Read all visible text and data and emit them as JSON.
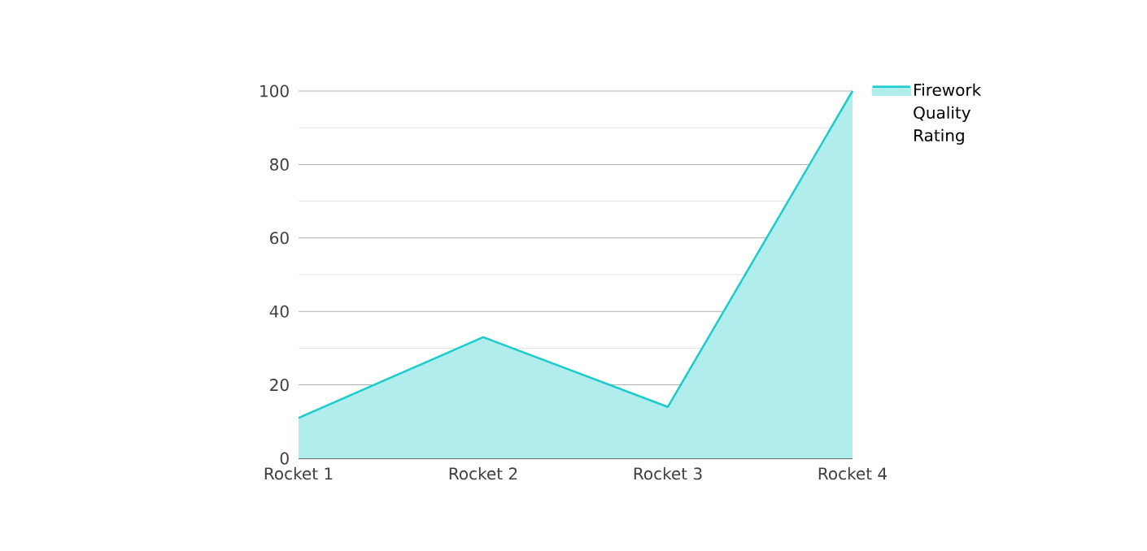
{
  "chart_data": {
    "type": "area",
    "categories": [
      "Rocket 1",
      "Rocket 2",
      "Rocket 3",
      "Rocket 4"
    ],
    "series": [
      {
        "name": "Firework Quality Rating",
        "color": "#1ccbcc",
        "values": [
          11,
          33,
          14,
          100
        ]
      }
    ],
    "ylim": [
      0,
      100
    ],
    "yticks": [
      0,
      {
        "value": 10,
        "label": null
      },
      20,
      {
        "value": 30,
        "label": null
      },
      40,
      {
        "value": 50,
        "label": null
      },
      60,
      {
        "value": 70,
        "label": null
      },
      80,
      {
        "value": 90,
        "label": null
      },
      100
    ],
    "grid": "y",
    "legend": "top right"
  }
}
